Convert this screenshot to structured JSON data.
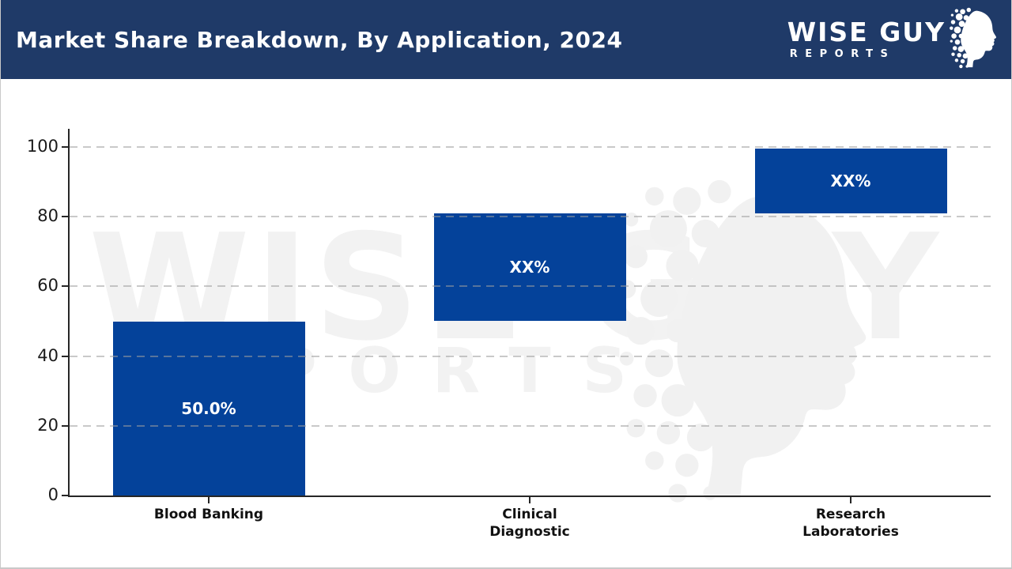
{
  "header": {
    "title": "Market Share Breakdown, By Application, 2024",
    "bg_color": "#1f3a68",
    "logo": {
      "line1": "WISE GUY",
      "line2": "REPORTS"
    }
  },
  "watermark": {
    "line1": "WISE GUY",
    "line2": "REPORTS"
  },
  "chart_data": {
    "type": "bar",
    "subtype": "waterfall-stacked-percentage",
    "title": "Market Share Breakdown, By Application, 2024",
    "categories": [
      "Blood Banking",
      "Clinical Diagnostic",
      "Research Laboratories"
    ],
    "category_label_lines": [
      [
        "Blood Banking"
      ],
      [
        "Clinical",
        "Diagnostic"
      ],
      [
        "Research",
        "Laboratories"
      ]
    ],
    "segments": [
      {
        "category": "Blood Banking",
        "from": 0,
        "to": 50,
        "value": 50.0,
        "label": "50.0%"
      },
      {
        "category": "Clinical Diagnostic",
        "from": 50,
        "to": 81,
        "value": 31.0,
        "label": "XX%"
      },
      {
        "category": "Research Laboratories",
        "from": 81,
        "to": 99.5,
        "value": 18.5,
        "label": "XX%"
      }
    ],
    "xlabel": "",
    "ylabel": "",
    "y_ticks": [
      0,
      20,
      40,
      60,
      80,
      100
    ],
    "ylim": [
      0,
      105
    ],
    "grid": "horizontal-dashed-over-bars",
    "legend": "none",
    "bar_color": "#04429a",
    "bar_label_color": "#ffffff",
    "axis_color": "#262626",
    "tick_label_color": "#1a1a1a"
  },
  "colors": {
    "header_bg": "#1f3a68",
    "bar_blue": "#04429a",
    "watermark_gray": "#f2f2f2",
    "border_gray": "#c9c9c9"
  }
}
